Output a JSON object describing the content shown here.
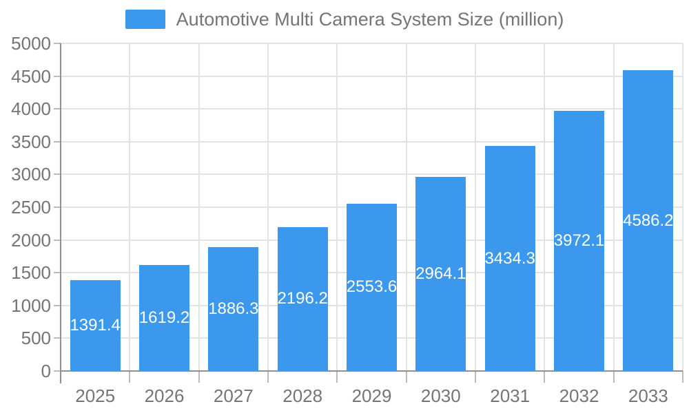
{
  "chart_data": {
    "type": "bar",
    "title": "Automotive Multi Camera System Size (million)",
    "legend": [
      "Automotive Multi Camera System Size (million)"
    ],
    "legend_position": "top-center",
    "categories": [
      "2025",
      "2026",
      "2027",
      "2028",
      "2029",
      "2030",
      "2031",
      "2032",
      "2033"
    ],
    "values": [
      1391.4,
      1619.2,
      1886.3,
      2196.2,
      2553.6,
      2964.1,
      3434.3,
      3972.1,
      4586.2
    ],
    "value_labels": [
      "1391.4",
      "1619.2",
      "1886.3",
      "2196.2",
      "2553.6",
      "2964.1",
      "3434.3",
      "3972.1",
      "4586.2"
    ],
    "xlabel": "",
    "ylabel": "",
    "ylim": [
      0,
      5000
    ],
    "y_ticks": [
      0,
      500,
      1000,
      1500,
      2000,
      2500,
      3000,
      3500,
      4000,
      4500,
      5000
    ],
    "grid": true,
    "colors": {
      "bar": "#3B98EC",
      "bar_label": "#FFFFFF",
      "axis_line": "#909090",
      "grid_line": "#E2E2E2",
      "tick_line": "#BBBBBB",
      "text": "#757575"
    }
  }
}
